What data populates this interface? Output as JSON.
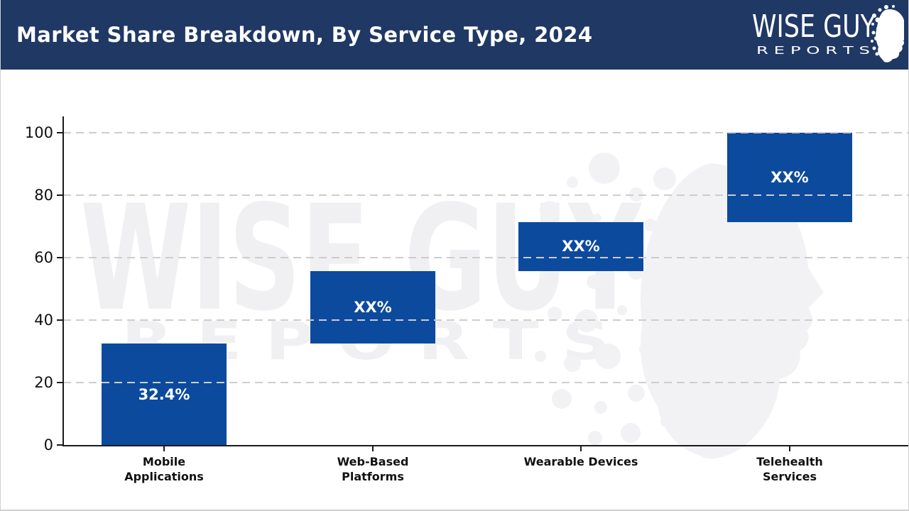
{
  "header": {
    "title": "Market Share Breakdown, By Service Type, 2024",
    "background_color": "#1f3864",
    "logo": {
      "line1": "WISE GUY",
      "line2": "R E P O R T S"
    }
  },
  "watermark": {
    "line1": "WISE GUY",
    "line2": "R E P O R T S"
  },
  "chart_data": {
    "type": "bar",
    "subtype": "waterfall",
    "title": "Market Share Breakdown, By Service Type, 2024",
    "categories": [
      "Mobile\nApplications",
      "Web-Based\nPlatforms",
      "Wearable Devices",
      "Telehealth\nServices"
    ],
    "segments": [
      {
        "category": "Mobile Applications",
        "start": 0,
        "end": 32.4,
        "bar_label": "32.4%"
      },
      {
        "category": "Web-Based Platforms",
        "start": 32.4,
        "end": 55.7,
        "bar_label": "XX%"
      },
      {
        "category": "Wearable Devices",
        "start": 55.7,
        "end": 71.4,
        "bar_label": "XX%"
      },
      {
        "category": "Telehealth Services",
        "start": 71.4,
        "end": 100,
        "bar_label": "XX%"
      }
    ],
    "y_ticks": [
      0,
      20,
      40,
      60,
      80,
      100
    ],
    "ylim": [
      0,
      105
    ],
    "xlabel": "",
    "ylabel": "",
    "grid": "horizontal-dashed",
    "legend": "none",
    "bar_color": "#0c4a9e",
    "bar_label_color": "#ffffff",
    "gridline_color": "#cdcdcd",
    "axis_color": "#1a1a1a",
    "watermark_color": "#f0f0f3"
  }
}
